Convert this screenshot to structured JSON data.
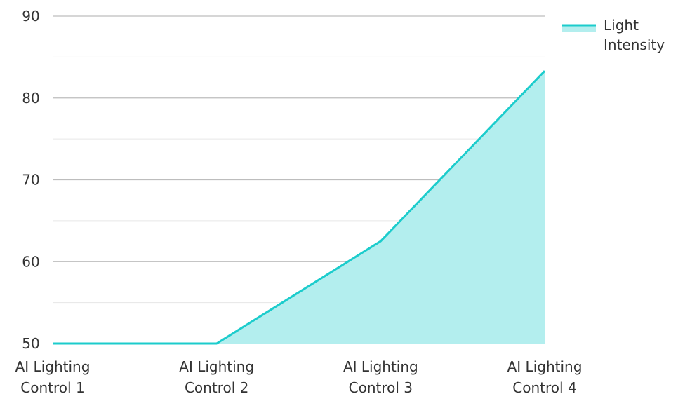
{
  "chart_data": {
    "type": "area",
    "categories": [
      "AI Lighting Control 1",
      "AI Lighting Control 2",
      "AI Lighting Control 3",
      "AI Lighting Control 4"
    ],
    "category_lines": [
      [
        "AI Lighting",
        "Control 1"
      ],
      [
        "AI Lighting",
        "Control 2"
      ],
      [
        "AI Lighting",
        "Control 3"
      ],
      [
        "AI Lighting",
        "Control 4"
      ]
    ],
    "series": [
      {
        "name": "Light Intensity",
        "name_lines": [
          "Light",
          "Intensity"
        ],
        "values": [
          50,
          50,
          62.5,
          83.3
        ]
      }
    ],
    "title": "",
    "xlabel": "",
    "ylabel": "",
    "ylim": [
      50,
      90
    ],
    "yticks": [
      50,
      60,
      70,
      80,
      90
    ],
    "grid": true,
    "legend": "top-right",
    "colors": {
      "line": "#1ccccc",
      "fill": "#b3eeee",
      "grid_major": "#bdbdbd",
      "grid_minor": "#e6e6e6"
    }
  }
}
